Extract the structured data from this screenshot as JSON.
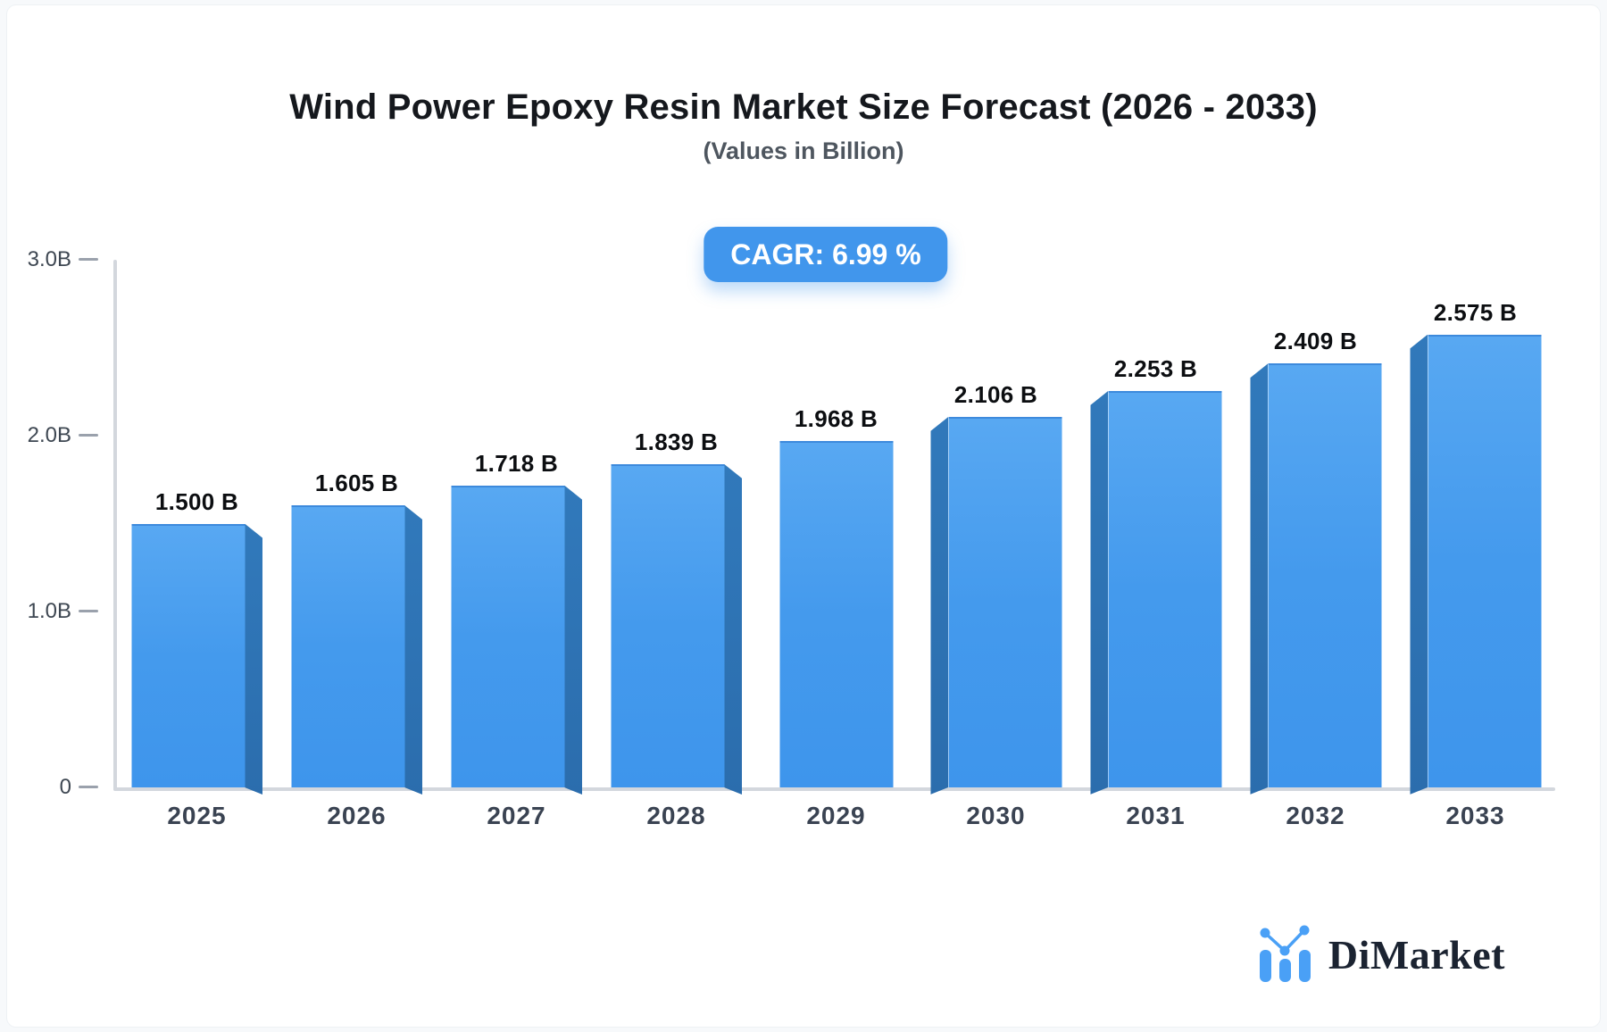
{
  "title": "Wind Power Epoxy Resin Market Size Forecast (2026 - 2033)",
  "subtitle": "(Values in Billion)",
  "badge": {
    "label": "CAGR: 6.99 %"
  },
  "brand": {
    "name": "DiMarket",
    "icon": "mini-bar-line-chart-logo"
  },
  "colors": {
    "accent_blue": "#4196ec",
    "bar_face_top": "#58a8f2",
    "bar_face_bottom": "#3e95ec",
    "bar_side": "#2d72b3",
    "axis_line": "#d3d7dd",
    "tick_dash": "#9aa1ac",
    "title_text": "#15181d",
    "subtitle_text": "#4e565f",
    "value_label_text": "#0c0e11",
    "year_label_text": "#3a4352",
    "logo_navy": "#1b2331",
    "logo_blue": "#4aa0f6",
    "card_background": "#ffffff",
    "page_background": "#f7f9fb"
  },
  "chart_data": {
    "type": "bar",
    "title": "Wind Power Epoxy Resin Market Size Forecast (2026 - 2033)",
    "subtitle": "(Values in Billion)",
    "cagr_label": "CAGR: 6.99 %",
    "categories": [
      "2025",
      "2026",
      "2027",
      "2028",
      "2029",
      "2030",
      "2031",
      "2032",
      "2033"
    ],
    "values": [
      1.5,
      1.605,
      1.718,
      1.839,
      1.968,
      2.106,
      2.253,
      2.409,
      2.575
    ],
    "value_labels": [
      "1.500 B",
      "1.605 B",
      "1.718 B",
      "1.839 B",
      "1.968 B",
      "2.106 B",
      "2.253 B",
      "2.409 B",
      "2.575 B"
    ],
    "xlabel": "",
    "ylabel": "",
    "ylim": [
      0,
      3
    ],
    "y_ticks": [
      {
        "label": "3.0B",
        "value": 3.0
      },
      {
        "label": "2.0B",
        "value": 2.0
      },
      {
        "label": "1.0B",
        "value": 1.0
      },
      {
        "label": "0",
        "value": 0.0
      }
    ],
    "grid": false,
    "legend": false,
    "bar_style": "3d-perspective-toward-center"
  }
}
